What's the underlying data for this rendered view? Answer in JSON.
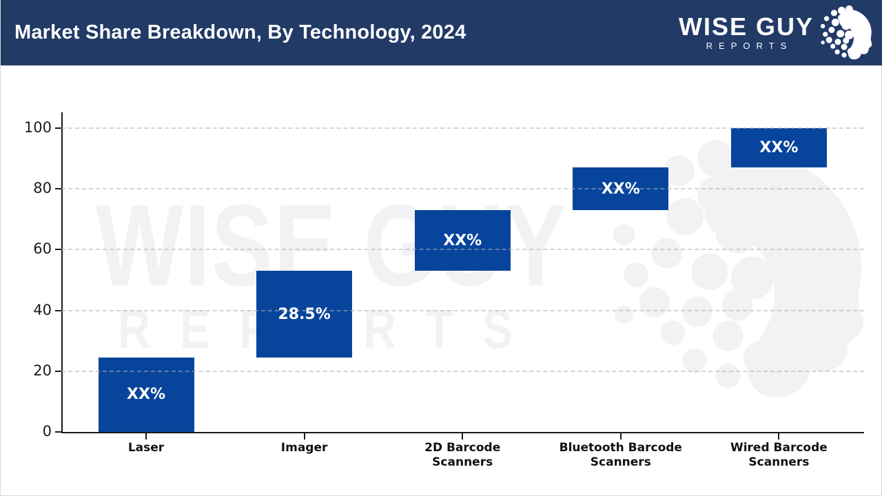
{
  "header": {
    "title": "Market Share Breakdown, By Technology, 2024",
    "logo": {
      "line1": "WISE GUY",
      "line2": "REPORTS"
    }
  },
  "watermark": {
    "line1": "WISE GUY",
    "line2": "REPORTS"
  },
  "colors": {
    "header_bg": "#213A66",
    "bar": "#07449C",
    "bar_label": "#FFFFFF",
    "axis": "#1A1A1A",
    "grid": "#DADADA",
    "watermark": "#F2F2F4",
    "page_border": "#D9D9D9",
    "title_text": "#FFFFFF"
  },
  "chart_data": {
    "type": "bar",
    "subtype": "waterfall-floating-bars",
    "title": "Market Share Breakdown, By Technology, 2024",
    "categories": [
      [
        "Laser"
      ],
      [
        "Imager"
      ],
      [
        "2D Barcode",
        "Scanners"
      ],
      [
        "Bluetooth Barcode",
        "Scanners"
      ],
      [
        "Wired Barcode",
        "Scanners"
      ]
    ],
    "segments": [
      {
        "start": 0,
        "end": 24.5,
        "label": "XX%"
      },
      {
        "start": 24.5,
        "end": 53,
        "label": "28.5%"
      },
      {
        "start": 53,
        "end": 73,
        "label": "XX%"
      },
      {
        "start": 73,
        "end": 87,
        "label": "XX%"
      },
      {
        "start": 87,
        "end": 100,
        "label": "XX%"
      }
    ],
    "values_implied_heights": [
      24.5,
      28.5,
      20,
      14,
      13
    ],
    "bar_labels": [
      "XX%",
      "28.5%",
      "XX%",
      "XX%",
      "XX%"
    ],
    "xlabel": "",
    "ylabel": "",
    "ylim": [
      0,
      100
    ],
    "yticks": [
      0,
      20,
      40,
      60,
      80,
      100
    ],
    "grid": "horizontal dashed, drawn over bars",
    "legend": "none"
  }
}
